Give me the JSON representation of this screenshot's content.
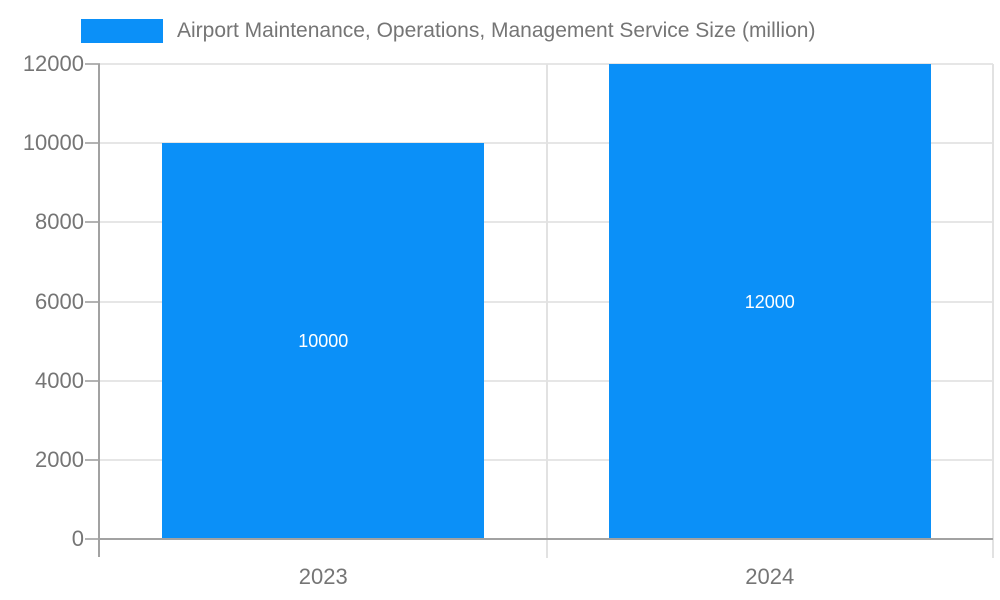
{
  "chart_data": {
    "type": "bar",
    "title": "Airport Maintenance, Operations, Management Service Size (million)",
    "categories": [
      "2023",
      "2024"
    ],
    "series": [
      {
        "name": "Airport Maintenance, Operations, Management Service Size (million)",
        "values": [
          10000,
          12000
        ]
      }
    ],
    "data_labels": [
      "10000",
      "12000"
    ],
    "xlabel": "",
    "ylabel": "",
    "ylim": [
      0,
      12000
    ],
    "ytick_step": 2000,
    "yticks": [
      0,
      2000,
      4000,
      6000,
      8000,
      10000,
      12000
    ],
    "grid": "on",
    "legend_position": "top-left",
    "colors": {
      "bar": "#0b90f8",
      "bar_value_text": "#ffffff",
      "axis_text": "#757575",
      "legend_text": "#757575",
      "hgrid": "#e6e6e6",
      "vgrid": "#e2e2e2",
      "axis_line": "#a2a2a2",
      "tick": "#b3b3b3",
      "background": "#ffffff"
    }
  }
}
